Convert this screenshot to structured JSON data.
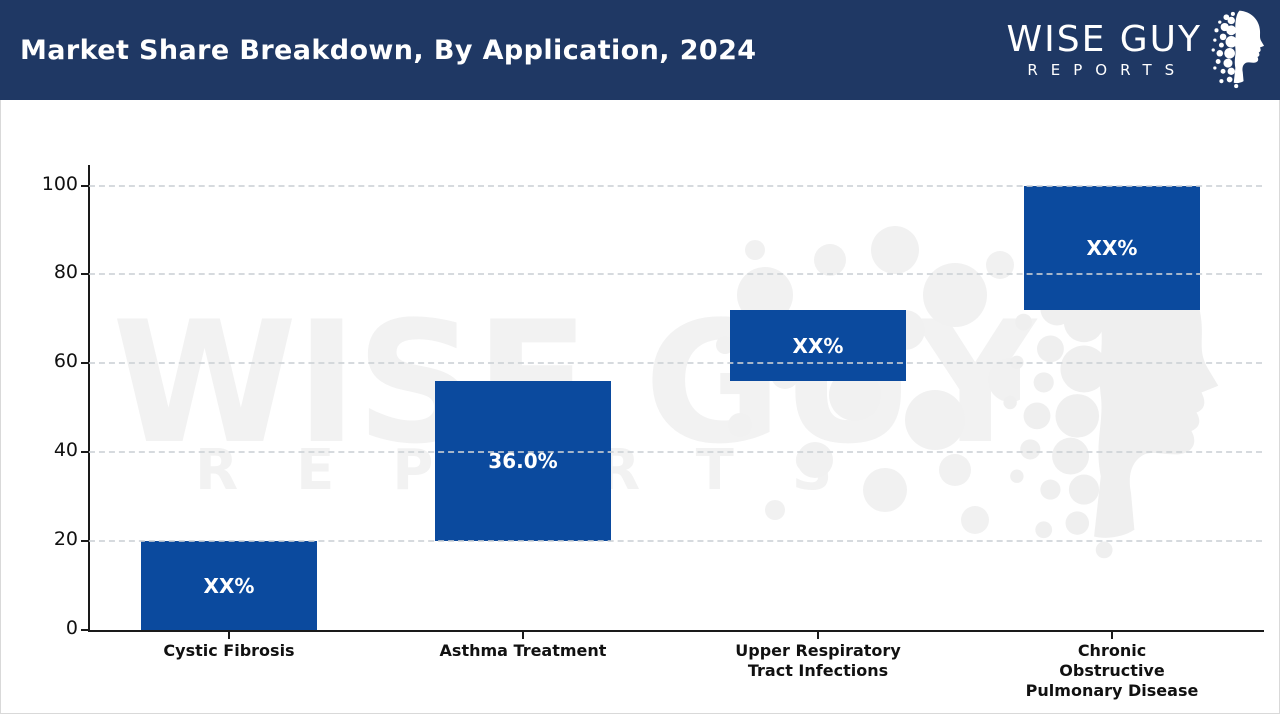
{
  "header": {
    "title": "Market Share Breakdown, By Application, 2024",
    "brand": {
      "line1": "WISE GUY",
      "line2": "REPORTS"
    }
  },
  "watermark": {
    "line1": "WISE GUY",
    "line2": "REPORTS"
  },
  "colors": {
    "header_bg": "#1f3864",
    "bar": "#0b4a9e",
    "bar_label_text": "#ffffff",
    "axis": "#1a1a1a",
    "gridline": "#d9d9d9",
    "watermark": "#f1f1f1",
    "card_border": "#d9d9d9"
  },
  "chart_data": {
    "type": "bar",
    "subtype": "waterfall",
    "title": "Market Share Breakdown, By Application, 2024",
    "categories": [
      "Cystic Fibrosis",
      "Asthma Treatment",
      "Upper Respiratory Tract Infections",
      "Chronic Obstructive Pulmonary Disease"
    ],
    "category_lines": [
      [
        "Cystic Fibrosis"
      ],
      [
        "Asthma Treatment"
      ],
      [
        "Upper Respiratory",
        "Tract Infections"
      ],
      [
        "Chronic",
        "Obstructive",
        "Pulmonary Disease"
      ]
    ],
    "bars": [
      {
        "category": "Cystic Fibrosis",
        "start": 0,
        "end": 20,
        "label": "XX%"
      },
      {
        "category": "Asthma Treatment",
        "start": 20,
        "end": 56,
        "label": "36.0%",
        "value": 36.0
      },
      {
        "category": "Upper Respiratory Tract Infections",
        "start": 56,
        "end": 72,
        "label": "XX%"
      },
      {
        "category": "Chronic Obstructive Pulmonary Disease",
        "start": 72,
        "end": 100,
        "label": "XX%"
      }
    ],
    "yticks": [
      0,
      20,
      40,
      60,
      80,
      100
    ],
    "ylim": [
      0,
      105
    ],
    "xlabel": "",
    "ylabel": "",
    "grid": "horizontal-dashed",
    "legend": null
  }
}
